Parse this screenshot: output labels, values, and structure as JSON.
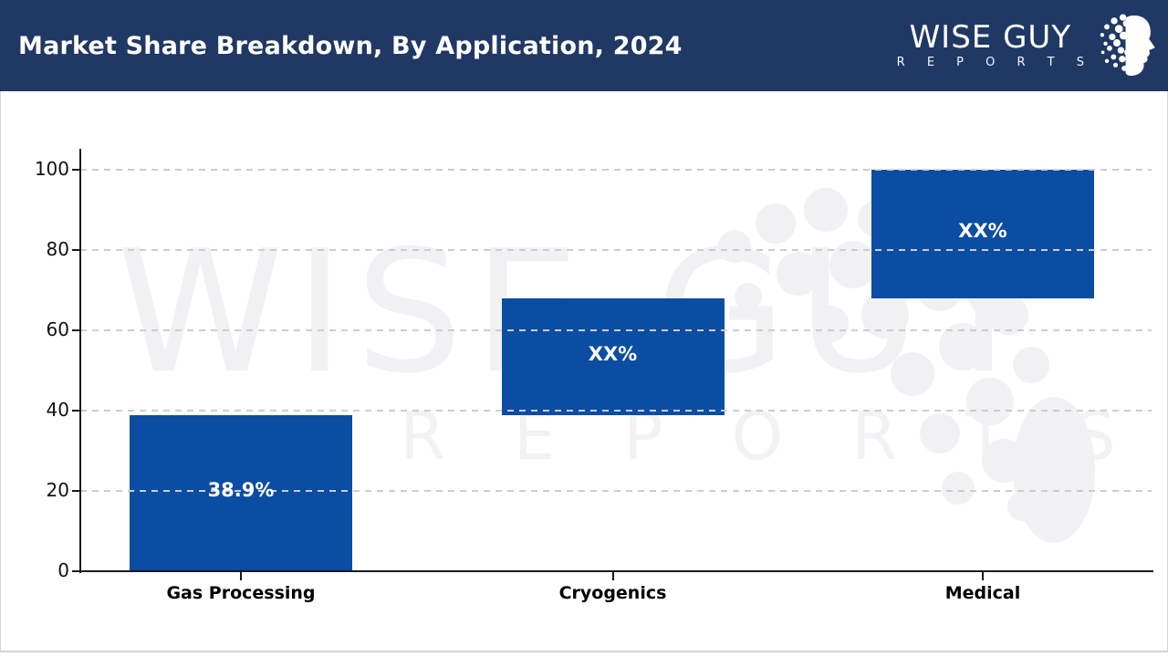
{
  "header": {
    "title": "Market Share Breakdown, By Application, 2024",
    "logo": {
      "line1": "WISE GUY",
      "line2": "R E P O R T S"
    }
  },
  "watermark": {
    "line1": "WISE GUY",
    "line2": "REPORTS"
  },
  "chart_data": {
    "type": "bar",
    "subtype": "floating-waterfall",
    "title": "Market Share Breakdown, By Application, 2024",
    "categories": [
      "Gas Processing",
      "Cryogenics",
      "Medical"
    ],
    "segments": [
      {
        "category": "Gas Processing",
        "start": 0,
        "end": 38.9,
        "label": "38.9%"
      },
      {
        "category": "Cryogenics",
        "start": 38.9,
        "end": 68.0,
        "label": "XX%"
      },
      {
        "category": "Medical",
        "start": 68.0,
        "end": 100.0,
        "label": "XX%"
      }
    ],
    "ylim": [
      0,
      100
    ],
    "yticks": [
      0,
      20,
      40,
      60,
      80,
      100
    ],
    "xlabel": "",
    "ylabel": "",
    "legend": "none",
    "grid": {
      "horizontal": true,
      "style": "dashed",
      "drawn_over_bars": true
    },
    "bar_color": "#0b4da2",
    "bar_label_color": "#ffffff",
    "axis_color": "#1a1a1a",
    "grid_color": "#cdcdcd",
    "header_bg": "#203864",
    "watermark_color": "#f1f1f4"
  }
}
